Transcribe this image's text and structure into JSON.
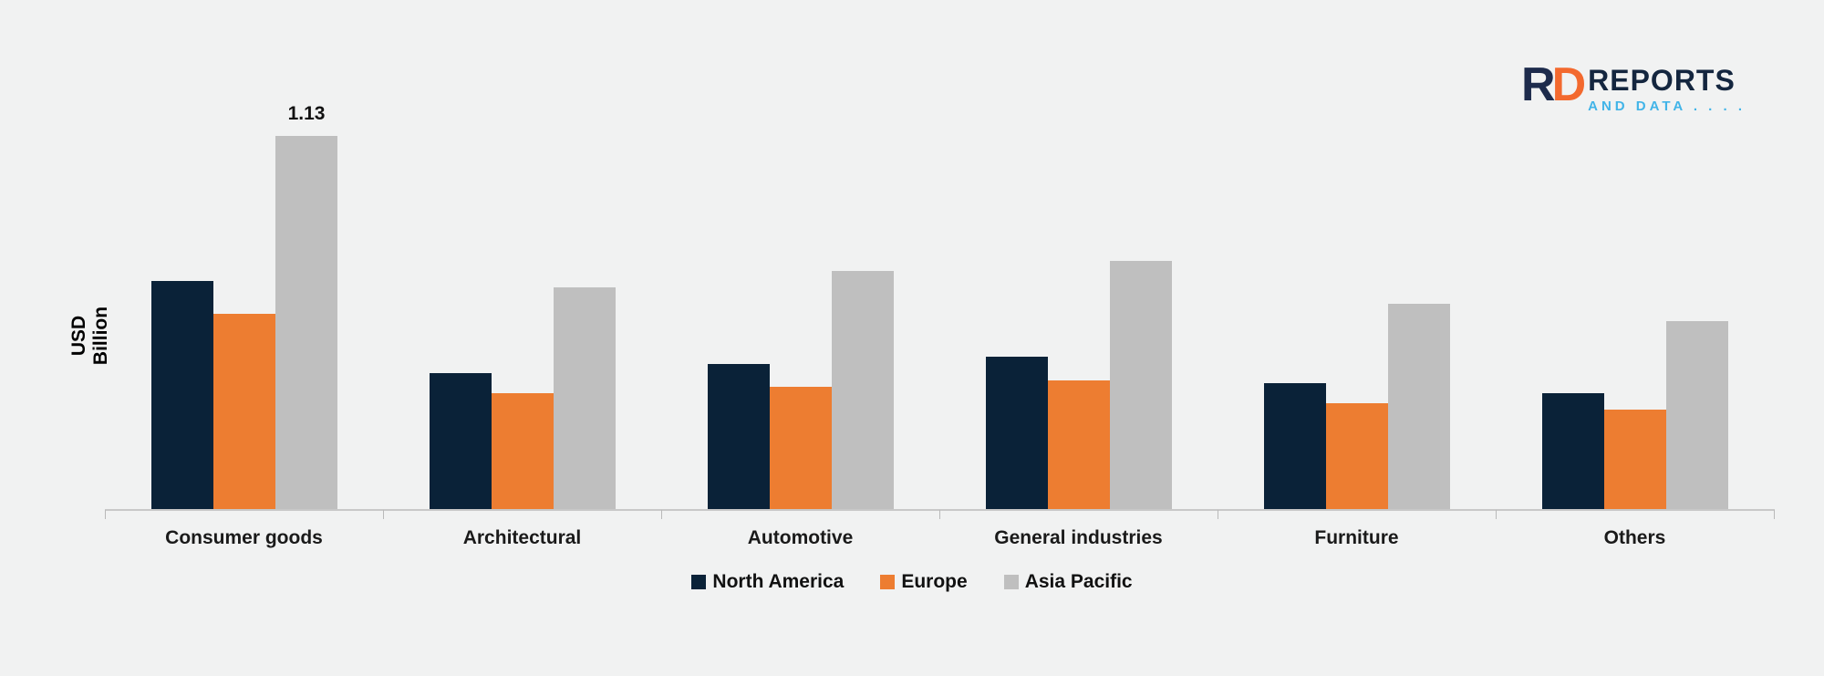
{
  "background_color": "#f1f2f2",
  "logo": {
    "mark_r": "R",
    "mark_d": "D",
    "title": "REPORTS",
    "subtitle": "AND DATA . . . .",
    "navy": "#14263f",
    "orange": "#f3692e",
    "blue": "#41b4e8"
  },
  "chart_data": {
    "type": "bar",
    "title": "",
    "xlabel": "",
    "ylabel": "USD Billion",
    "ylim": [
      0,
      1.27
    ],
    "grid": false,
    "legend_position": "bottom",
    "axis_color": "#c8c8c8",
    "categories": [
      "Consumer goods",
      "Architectural",
      "Automotive",
      "General industries",
      "Furniture",
      "Others"
    ],
    "series": [
      {
        "name": "North America",
        "color": "#0a2238",
        "values": [
          0.69,
          0.41,
          0.44,
          0.46,
          0.38,
          0.35
        ]
      },
      {
        "name": "Europe",
        "color": "#ed7d31",
        "values": [
          0.59,
          0.35,
          0.37,
          0.39,
          0.32,
          0.3
        ]
      },
      {
        "name": "Asia Pacific",
        "color": "#bfbfbf",
        "values": [
          1.13,
          0.67,
          0.72,
          0.75,
          0.62,
          0.57
        ]
      }
    ],
    "data_labels": [
      {
        "category_index": 0,
        "series_index": 2,
        "text": "1.13"
      }
    ]
  }
}
